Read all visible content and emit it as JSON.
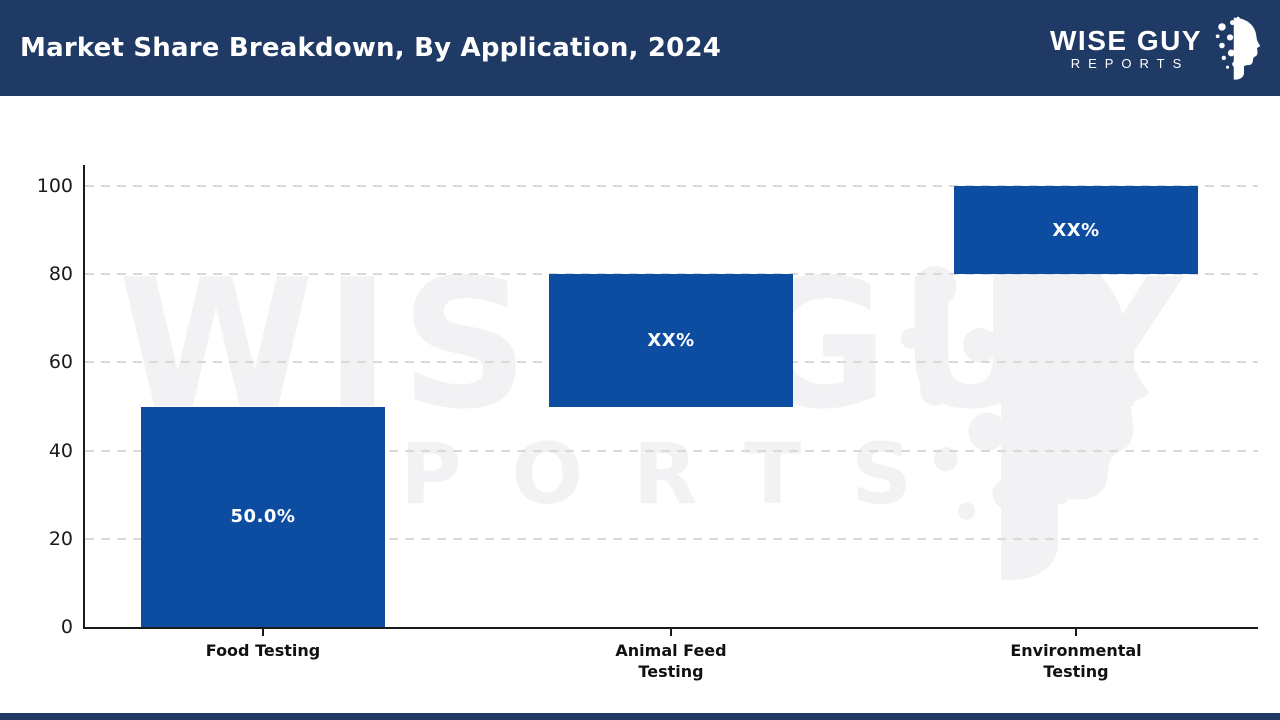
{
  "header": {
    "title": "Market Share Breakdown, By Application, 2024",
    "logo": {
      "wordmark": "WISE GUY",
      "subtext": "REPORTS",
      "face_icon": "dotted-head-profile"
    }
  },
  "watermark": {
    "wordmark": "WISE GUY",
    "subtext": "REPORTS"
  },
  "chart_data": {
    "type": "bar",
    "variant": "floating-segment-waterfall",
    "title": "Market Share Breakdown, By Application, 2024",
    "categories": [
      "Food Testing",
      "Animal Feed Testing",
      "Environmental Testing"
    ],
    "category_label_lines": [
      [
        "Food Testing"
      ],
      [
        "Animal Feed",
        "Testing"
      ],
      [
        "Environmental",
        "Testing"
      ]
    ],
    "series": [
      {
        "name": "Market share",
        "segments": [
          {
            "category": "Food Testing",
            "from": 0,
            "to": 50,
            "label": "50.0%"
          },
          {
            "category": "Animal Feed Testing",
            "from": 50,
            "to": 80,
            "label": "XX%"
          },
          {
            "category": "Environmental Testing",
            "from": 80,
            "to": 100,
            "label": "XX%"
          }
        ]
      }
    ],
    "xlabel": "",
    "ylabel": "",
    "ylim": [
      0,
      100
    ],
    "yticks": [
      0,
      20,
      40,
      60,
      80,
      100
    ],
    "grid": "horizontal-dashed",
    "legend": "none",
    "bar_color": "#0C4DA2",
    "bar_label_color": "#FFFFFF"
  },
  "colors": {
    "header_bg": "#203A66",
    "footer_bar": "#203A66",
    "bar_fill": "#0C4DA2",
    "axis": "#1A1A1A",
    "gridline": "#D9D9D9",
    "watermark_gray": "#F2F2F4"
  }
}
